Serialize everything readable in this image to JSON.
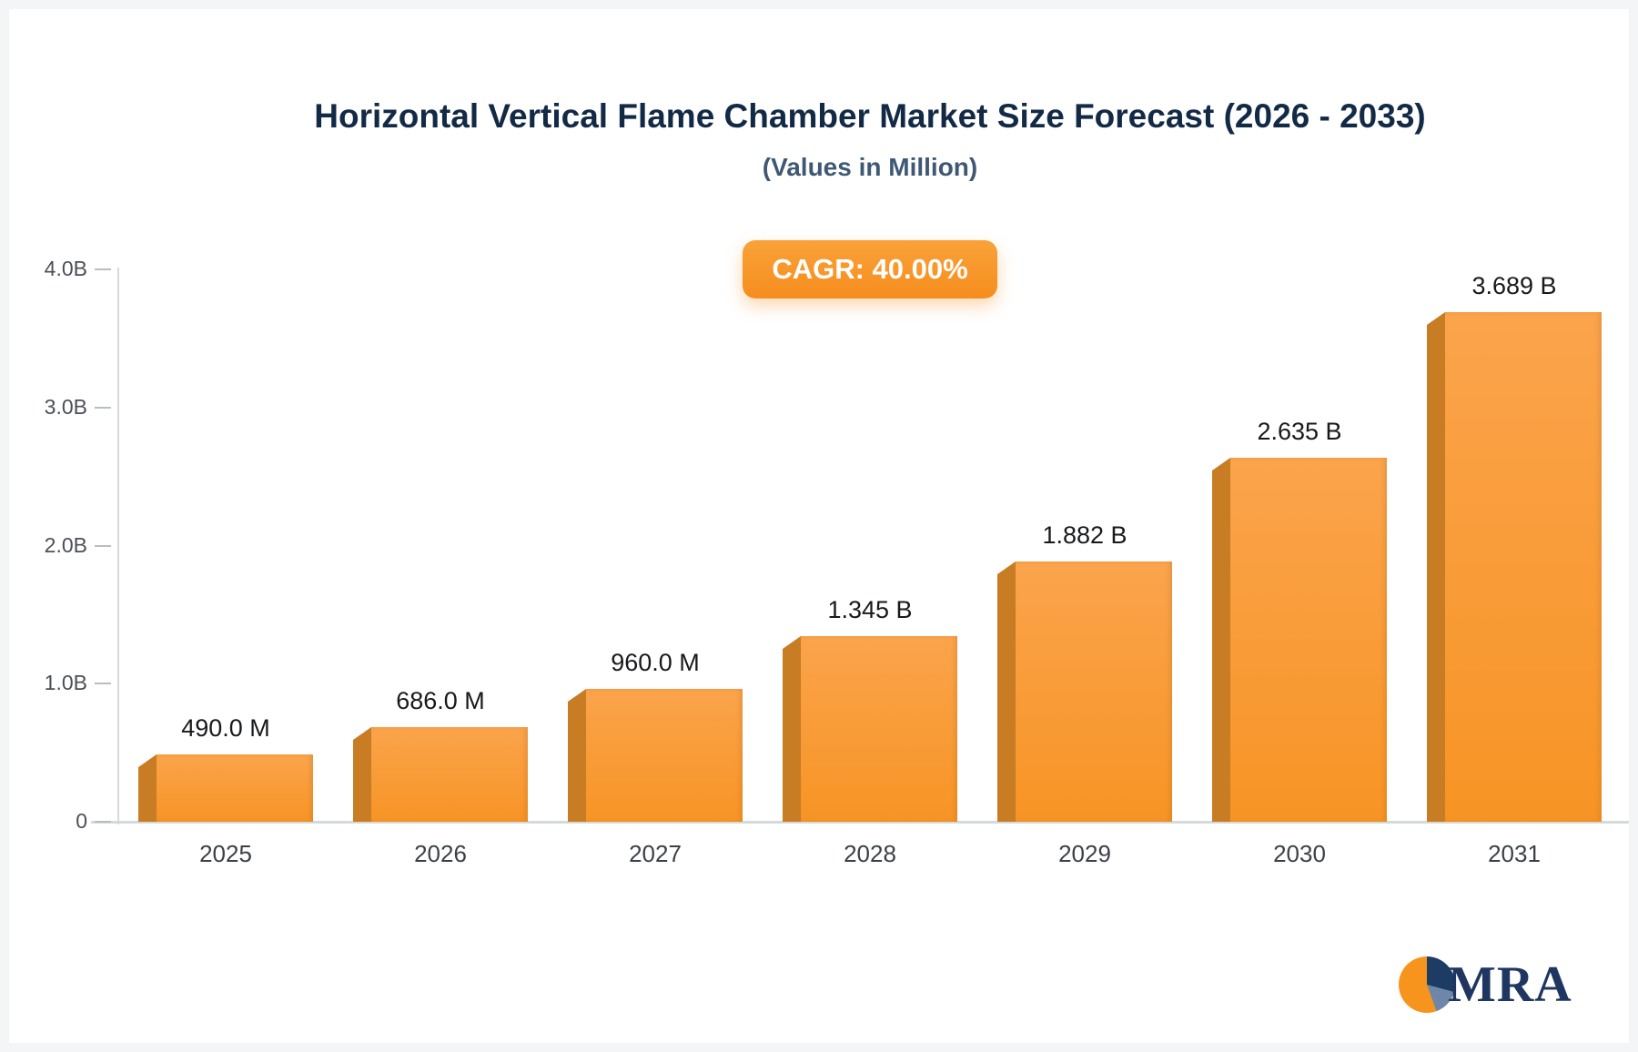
{
  "header": {
    "title": "Horizontal Vertical Flame Chamber Market Size Forecast (2026 - 2033)",
    "subtitle": "(Values in Million)"
  },
  "badge": {
    "label": "CAGR: 40.00%",
    "color_top": "#f9a239",
    "color_bottom": "#f68d1e"
  },
  "chart_data": {
    "type": "bar",
    "title": "Horizontal Vertical Flame Chamber Market Size Forecast (2026 - 2033)",
    "subtitle": "(Values in Million)",
    "cagr_label": "CAGR: 40.00%",
    "categories": [
      "2025",
      "2026",
      "2027",
      "2028",
      "2029",
      "2030",
      "2031"
    ],
    "values_millions": [
      490,
      686,
      960,
      1345,
      1882,
      2635,
      3689
    ],
    "value_labels": [
      "490.0 M",
      "686.0 M",
      "960.0 M",
      "1.345 B",
      "1.882 B",
      "2.635 B",
      "3.689 B"
    ],
    "xlabel": "",
    "ylabel": "",
    "ylim_millions": [
      0,
      4000
    ],
    "yticks": [
      {
        "label": "4.0B",
        "m": 4000
      },
      {
        "label": "3.0B",
        "m": 3000
      },
      {
        "label": "2.0B",
        "m": 2000
      },
      {
        "label": "1.0B",
        "m": 1000
      },
      {
        "label": "0",
        "m": 0
      }
    ],
    "grid": false,
    "legend": "none",
    "colors": {
      "bar_main": "#f79425",
      "bar_light": "#fba44c",
      "bar_side": "#c87c24"
    }
  },
  "logo": {
    "text": "MRA",
    "colors": {
      "orange": "#f7941d",
      "navy": "#1d3c63",
      "steel_blue": "#6e87a8",
      "text": "#1f3660"
    }
  }
}
